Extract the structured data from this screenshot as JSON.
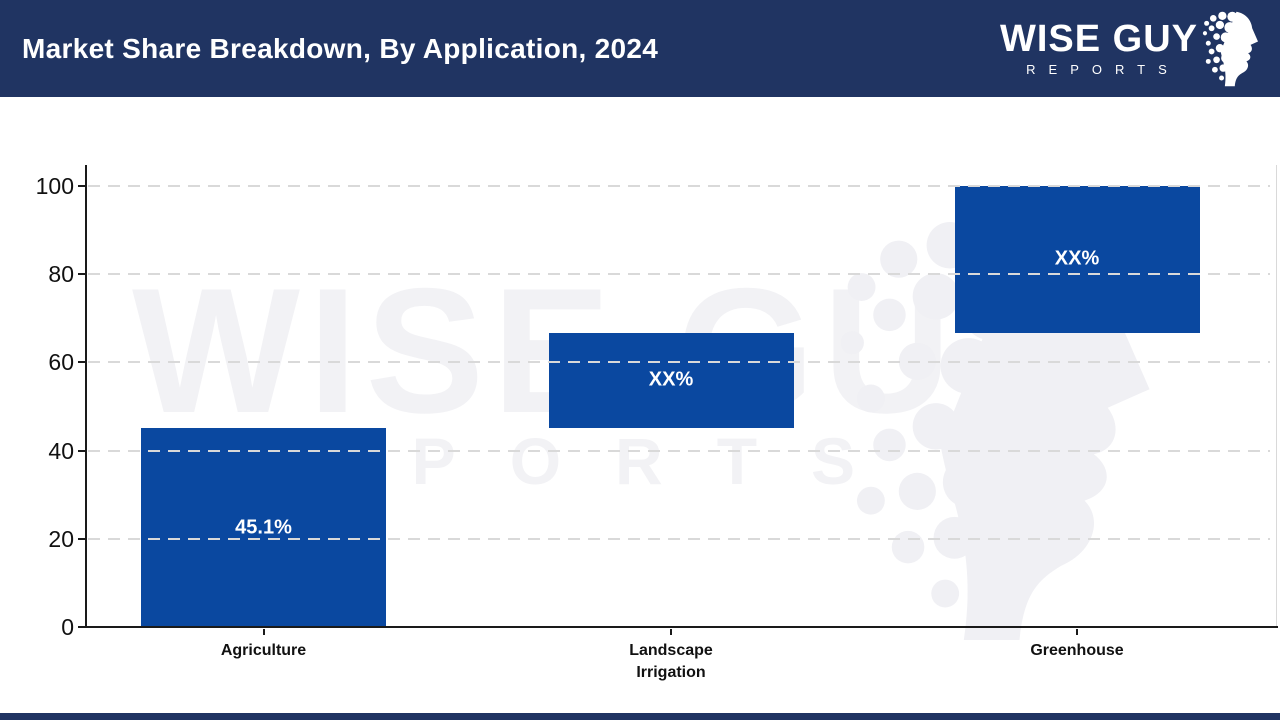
{
  "header": {
    "title": "Market Share Breakdown, By Application, 2024",
    "logo": {
      "line1": "WISE GUY",
      "line2": "REPORTS"
    }
  },
  "watermark": {
    "line1": "WISE GUY",
    "line2": "REPORTS"
  },
  "chart_data": {
    "type": "bar",
    "variant": "floating-waterfall",
    "title": "Market Share Breakdown, By Application, 2024",
    "categories": [
      "Agriculture",
      "Landscape Irrigation",
      "Greenhouse"
    ],
    "segments": [
      {
        "category": "Agriculture",
        "start": 0,
        "end": 45.1
      },
      {
        "category": "Landscape Irrigation",
        "start": 45.1,
        "end": 66.7
      },
      {
        "category": "Greenhouse",
        "start": 66.7,
        "end": 100
      }
    ],
    "bar_labels": [
      "45.1%",
      "XX%",
      "XX%"
    ],
    "ylim": [
      0,
      100
    ],
    "yticks": [
      0,
      20,
      40,
      60,
      80,
      100
    ],
    "xlabel": "",
    "ylabel": "",
    "grid": "horizontal-dashed",
    "legend": "none",
    "bar_color": "#0a48a0"
  },
  "colors": {
    "header_navy": "#203462",
    "bar_blue": "#0a48a0",
    "gridline_gray": "#d9d9d9",
    "watermark_gray": "#f2f2f5"
  }
}
